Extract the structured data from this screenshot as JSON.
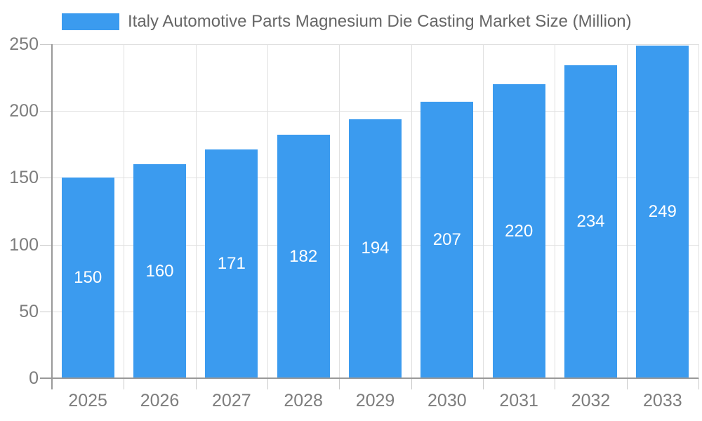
{
  "chart_data": {
    "type": "bar",
    "title": "Italy Automotive Parts Magnesium Die Casting Market Size (Million)",
    "categories": [
      "2025",
      "2026",
      "2027",
      "2028",
      "2029",
      "2030",
      "2031",
      "2032",
      "2033"
    ],
    "values": [
      150,
      160,
      171,
      182,
      194,
      207,
      220,
      234,
      249
    ],
    "xlabel": "",
    "ylabel": "",
    "ylim": [
      0,
      250
    ],
    "yticks": [
      0,
      50,
      100,
      150,
      200,
      250
    ],
    "grid": true,
    "legend_position": "top",
    "value_label_position": "inside-center",
    "colors": {
      "bar": "#3b9bef",
      "title_text": "#666666",
      "axis_text": "#7d7d7d",
      "value_text": "#ffffff",
      "gridline": "#e0e0e0",
      "axis_line": "#999999",
      "tick": "#c9c9c9",
      "background": "#ffffff"
    }
  }
}
